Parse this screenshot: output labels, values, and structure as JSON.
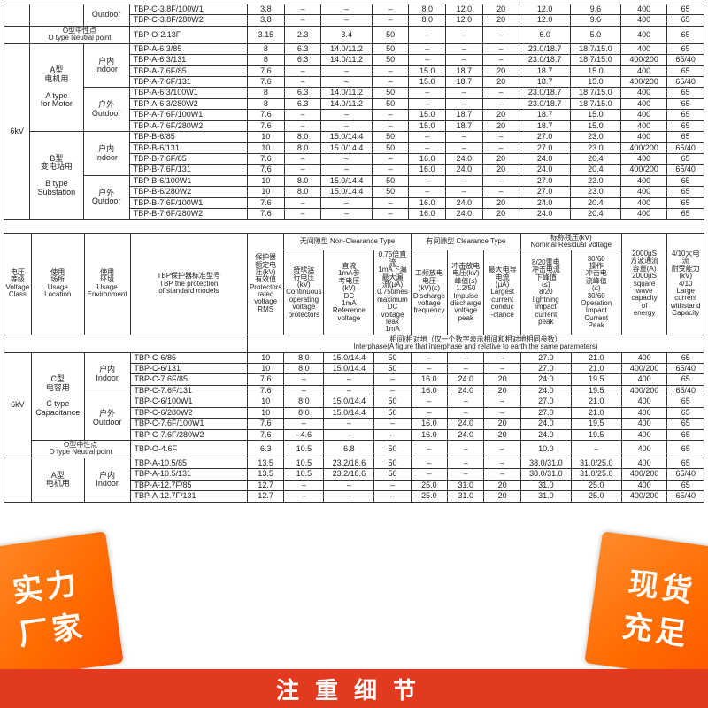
{
  "colors": {
    "badge_top": "#ff8a2a",
    "badge_mid": "#ff6b00",
    "badge_bot": "#ff5500",
    "bottombar_bg": "#e23a1f",
    "text": "#222222",
    "border": "#333333"
  },
  "badge_bl": {
    "l1": "实力",
    "l2": "厂家"
  },
  "badge_br": {
    "l1": "现货",
    "l2": "充足"
  },
  "bottombar": "注重细节",
  "labels": {
    "outdoor": "Outdoor",
    "indoor_cn": "户内",
    "indoor_en": "Indoor",
    "outdoor_cn": "户外",
    "outdoor_en": "Outdoor",
    "oType": "O型中性点\nO type Neutral point",
    "system6kv": "6kV",
    "aTypeMotor": "A型\n电机用\n\nA type\nfor Motor",
    "bTypeSub": "B型\n变电站用\n\nB type\nSubstation",
    "cTypeCap": "C型\n电容用\n\nC type\nCapacitance",
    "aTypeMotor2": "A型\n电机用"
  },
  "t1": {
    "pre": [
      {
        "model": "TBP-C-3.8F/100W1",
        "c": [
          "3.8",
          "–",
          "–",
          "–",
          "8.0",
          "12.0",
          "20",
          "12.0",
          "9.6",
          "400",
          "65"
        ]
      },
      {
        "model": "TBP-C-3.8F/280W2",
        "c": [
          "3.8",
          "–",
          "–",
          "–",
          "8.0",
          "12.0",
          "20",
          "12.0",
          "9.6",
          "400",
          "65"
        ]
      }
    ],
    "oRow": {
      "model": "TBP-O-2.13F",
      "c": [
        "3.15",
        "2.3",
        "3.4",
        "50",
        "–",
        "–",
        "–",
        "6.0",
        "5.0",
        "400",
        "65"
      ]
    },
    "aIndoor": [
      {
        "model": "TBP-A-6.3/85",
        "c": [
          "8",
          "6.3",
          "14.0/11.2",
          "50",
          "–",
          "–",
          "–",
          "23.0/18.7",
          "18.7/15.0",
          "400",
          "65"
        ]
      },
      {
        "model": "TBP-A-6.3/131",
        "c": [
          "8",
          "6.3",
          "14.0/11.2",
          "50",
          "–",
          "–",
          "–",
          "23.0/18.7",
          "18.7/15.0",
          "400/200",
          "65/40"
        ]
      },
      {
        "model": "TBP-A-7.6F/85",
        "c": [
          "7.6",
          "–",
          "–",
          "–",
          "15.0",
          "18.7",
          "20",
          "18.7",
          "15.0",
          "400",
          "65"
        ]
      },
      {
        "model": "TBP-A-7.6F/131",
        "c": [
          "7.6",
          "–",
          "–",
          "–",
          "15.0",
          "18.7",
          "20",
          "18.7",
          "15.0",
          "400/200",
          "65/40"
        ]
      }
    ],
    "aOutdoor": [
      {
        "model": "TBP-A-6.3/100W1",
        "c": [
          "8",
          "6.3",
          "14.0/11.2",
          "50",
          "–",
          "–",
          "–",
          "23.0/18.7",
          "18.7/15.0",
          "400",
          "65"
        ]
      },
      {
        "model": "TBP-A-6.3/280W2",
        "c": [
          "8",
          "6.3",
          "14.0/11.2",
          "50",
          "–",
          "–",
          "–",
          "23.0/18.7",
          "18.7/15.0",
          "400",
          "65"
        ]
      },
      {
        "model": "TBP-A-7.6F/100W1",
        "c": [
          "7.6",
          "–",
          "–",
          "–",
          "15.0",
          "18.7",
          "20",
          "18.7",
          "15.0",
          "400",
          "65"
        ]
      },
      {
        "model": "TBP-A-7.6F/280W2",
        "c": [
          "7.6",
          "–",
          "–",
          "–",
          "15.0",
          "18.7",
          "20",
          "18.7",
          "15.0",
          "400",
          "65"
        ]
      }
    ],
    "bIndoor": [
      {
        "model": "TBP-B-6/85",
        "c": [
          "10",
          "8.0",
          "15.0/14.4",
          "50",
          "–",
          "–",
          "–",
          "27.0",
          "23.0",
          "400",
          "65"
        ]
      },
      {
        "model": "TBP-B-6/131",
        "c": [
          "10",
          "8.0",
          "15.0/14.4",
          "50",
          "–",
          "–",
          "–",
          "27.0",
          "23.0",
          "400/200",
          "65/40"
        ]
      },
      {
        "model": "TBP-B-7.6F/85",
        "c": [
          "7.6",
          "–",
          "–",
          "–",
          "16.0",
          "24.0",
          "20",
          "24.0",
          "20.4",
          "400",
          "65"
        ]
      },
      {
        "model": "TBP-B-7.6F/131",
        "c": [
          "7.6",
          "–",
          "–",
          "–",
          "16.0",
          "24.0",
          "20",
          "24.0",
          "20.4",
          "400/200",
          "65/40"
        ]
      }
    ],
    "bOutdoor": [
      {
        "model": "TBP-B-6/100W1",
        "c": [
          "10",
          "8.0",
          "15.0/14.4",
          "50",
          "–",
          "–",
          "–",
          "27.0",
          "23.0",
          "400",
          "65"
        ]
      },
      {
        "model": "TBP-B-6/280W2",
        "c": [
          "10",
          "8.0",
          "15.0/14.4",
          "50",
          "–",
          "–",
          "–",
          "27.0",
          "23.0",
          "400",
          "65"
        ]
      },
      {
        "model": "TBP-B-7.6F/100W1",
        "c": [
          "7.6",
          "–",
          "–",
          "–",
          "16.0",
          "24.0",
          "20",
          "24.0",
          "20.4",
          "400",
          "65"
        ]
      },
      {
        "model": "TBP-B-7.6F/280W2",
        "c": [
          "7.6",
          "–",
          "–",
          "–",
          "16.0",
          "24.0",
          "20",
          "24.0",
          "20.4",
          "400",
          "65"
        ]
      }
    ]
  },
  "hdr2": {
    "c0": "电压\n等级\nVoltage\nClass",
    "c1": "使用\n场所\nUsage\nLocation",
    "c2": "使用\n环境\nUsage\nEnvironment",
    "c3": "TBP保护器标准型号\nTBP the protection\nof standard models",
    "c4": "保护器\n额定电\n压(kV)\n有效值\nProtectors\nrated\nvoltage\nRMS",
    "grpA": "无间隙型 Non-Clearance Type",
    "grpB": "有间隙型 Clearance Type",
    "grpC": "标称残压(kV)\nNominal Residual Voltage",
    "c5": "持续运\n行电压\n(kV)\nContinuous\noperating\nvoltage\nprotectors",
    "c6": "直流\n1mA参\n考电压\n(kV)\nDC\n1mA\nReference\nvoltage",
    "c7": "0.75倍直流\n1mA下漏\n最大漏\n流(µA)\n0.75times\nmaximum\nDC\nvoltage\nleak\n1mA",
    "c8": "工频放电\n电压\n(kV)(≤)\nDischarge\nvoltage\nfrequency",
    "c9": "冲击放电\n电压(kV)\n峰值(≤)\n1.2/50\nImpulse\ndischarge\nvoltage\npeak",
    "c10": "最大电导\n电流\n(µA)\nLargest\ncurrent\nconduc\n-ctance",
    "c11": "8/20雷电\n冲击电流\n下峰值\n(≤)\n8/20\nlightning\nimpact\ncurrent\npeak",
    "c12": "30/60\n操作\n冲击电\n流峰值\n(≤)\n30/60\nOperation\nImpact\nCurrent\nPeak",
    "c13": "2000µS\n方波通流\n容量(A)\n2000µS\nsquare\nwave\ncapacity\nof\nenergy",
    "c14": "4/10大电流\n耐受能力\n(kV)\n4/10\nLarge\ncurrent\nwithstand\nCapacity",
    "inter": "相间/相对地（仅一个数字表示相间和相对地相同参数）\nInterphase(A figure that interphase and relative to earth the same parameters)"
  },
  "t2": {
    "cIndoor": [
      {
        "model": "TBP-C-6/85",
        "c": [
          "10",
          "8.0",
          "15.0/14.4",
          "50",
          "–",
          "–",
          "–",
          "27.0",
          "21.0",
          "400",
          "65"
        ]
      },
      {
        "model": "TBP-C-6/131",
        "c": [
          "10",
          "8.0",
          "15.0/14.4",
          "50",
          "–",
          "–",
          "–",
          "27.0",
          "21.0",
          "400/200",
          "65/40"
        ]
      },
      {
        "model": "TBP-C-7.6F/85",
        "c": [
          "7.6",
          "–",
          "–",
          "–",
          "16.0",
          "24.0",
          "20",
          "24.0",
          "19.5",
          "400",
          "65"
        ]
      },
      {
        "model": "TBP-C-7.6F/131",
        "c": [
          "7.6",
          "–",
          "–",
          "–",
          "16.0",
          "24.0",
          "20",
          "24.0",
          "19.5",
          "400/200",
          "65/40"
        ]
      }
    ],
    "cOutdoor": [
      {
        "model": "TBP-C-6/100W1",
        "c": [
          "10",
          "8.0",
          "15.0/14.4",
          "50",
          "–",
          "–",
          "–",
          "27.0",
          "21.0",
          "400",
          "65"
        ]
      },
      {
        "model": "TBP-C-6/280W2",
        "c": [
          "10",
          "8.0",
          "15.0/14.4",
          "50",
          "–",
          "–",
          "–",
          "27.0",
          "21.0",
          "400",
          "65"
        ]
      },
      {
        "model": "TBP-C-7.6F/100W1",
        "c": [
          "7.6",
          "–",
          "–",
          "–",
          "16.0",
          "24.0",
          "20",
          "24.0",
          "19.5",
          "400",
          "65"
        ]
      },
      {
        "model": "TBP-C-7.6F/280W2",
        "c": [
          "7.6",
          "–4.6",
          "–",
          "–",
          "16.0",
          "24.0",
          "20",
          "24.0",
          "19.5",
          "400",
          "65"
        ]
      }
    ],
    "oRow": {
      "model": "TBP-O-4.6F",
      "c": [
        "6.3",
        "10.5",
        "6.8",
        "50",
        "–",
        "–",
        "–",
        "10.0",
        "–",
        "400",
        "65"
      ]
    },
    "aIndoor": [
      {
        "model": "TBP-A-10.5/85",
        "c": [
          "13.5",
          "10.5",
          "23.2/18.6",
          "50",
          "–",
          "–",
          "–",
          "38.0/31.0",
          "31.0/25.0",
          "400",
          "65"
        ]
      },
      {
        "model": "TBP-A-10.5/131",
        "c": [
          "13.5",
          "10.5",
          "23.2/18.6",
          "50",
          "–",
          "–",
          "–",
          "38.0/31.0",
          "31.0/25.0",
          "400/200",
          "65/40"
        ]
      },
      {
        "model": "TBP-A-12.7F/85",
        "c": [
          "12.7",
          "–",
          "–",
          "–",
          "25.0",
          "31.0",
          "20",
          "31.0",
          "25.0",
          "400",
          "65"
        ]
      },
      {
        "model": "TBP-A-12.7F/131",
        "c": [
          "12.7",
          "–",
          "–",
          "–",
          "25.0",
          "31.0",
          "20",
          "31.0",
          "25.0",
          "400/200",
          "65/40"
        ]
      }
    ]
  }
}
